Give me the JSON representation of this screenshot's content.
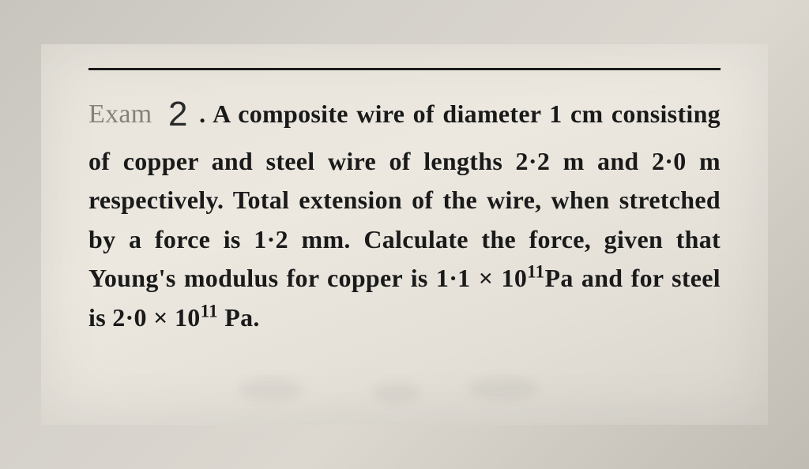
{
  "document": {
    "background_gradient": [
      "#c8c4be",
      "#d4d0ca",
      "#dcd8d0",
      "#c0bcb4"
    ],
    "paper_gradient": [
      "#e8e4dc",
      "#ece8e0",
      "#e4e0d8",
      "#d8d4cc"
    ],
    "text_color": "#1a1a1a",
    "exam_label_color": "#888078",
    "font_size_body": 32,
    "font_size_exam_label": 34,
    "font_size_exam_number": 44,
    "line_height": 1.55,
    "rule_color": "#1a1a1a",
    "rule_thickness": 3
  },
  "content": {
    "exam_label": "Exam",
    "exam_number": "2",
    "lead_punct": ".",
    "sentence_1a": "A composite wire of diameter 1 cm consisting of copper and steel wire of lengths 2·2 m and 2·0 m respectively. Total extension of the wire, when stretched by a force is 1·2 mm. Calculate the force, given that Young's modulus for copper is 1·1 × 10",
    "exp_1": "11",
    "unit_1": "Pa",
    "sentence_1b": " and for steel is 2·0 × 10",
    "exp_2": "11",
    "unit_2": " Pa.",
    "diameter_cm": 1,
    "copper_length_m": 2.2,
    "steel_length_m": 2.0,
    "total_extension_mm": 1.2,
    "youngs_copper_pa": "1.1e11",
    "youngs_steel_pa": "2.0e11"
  }
}
